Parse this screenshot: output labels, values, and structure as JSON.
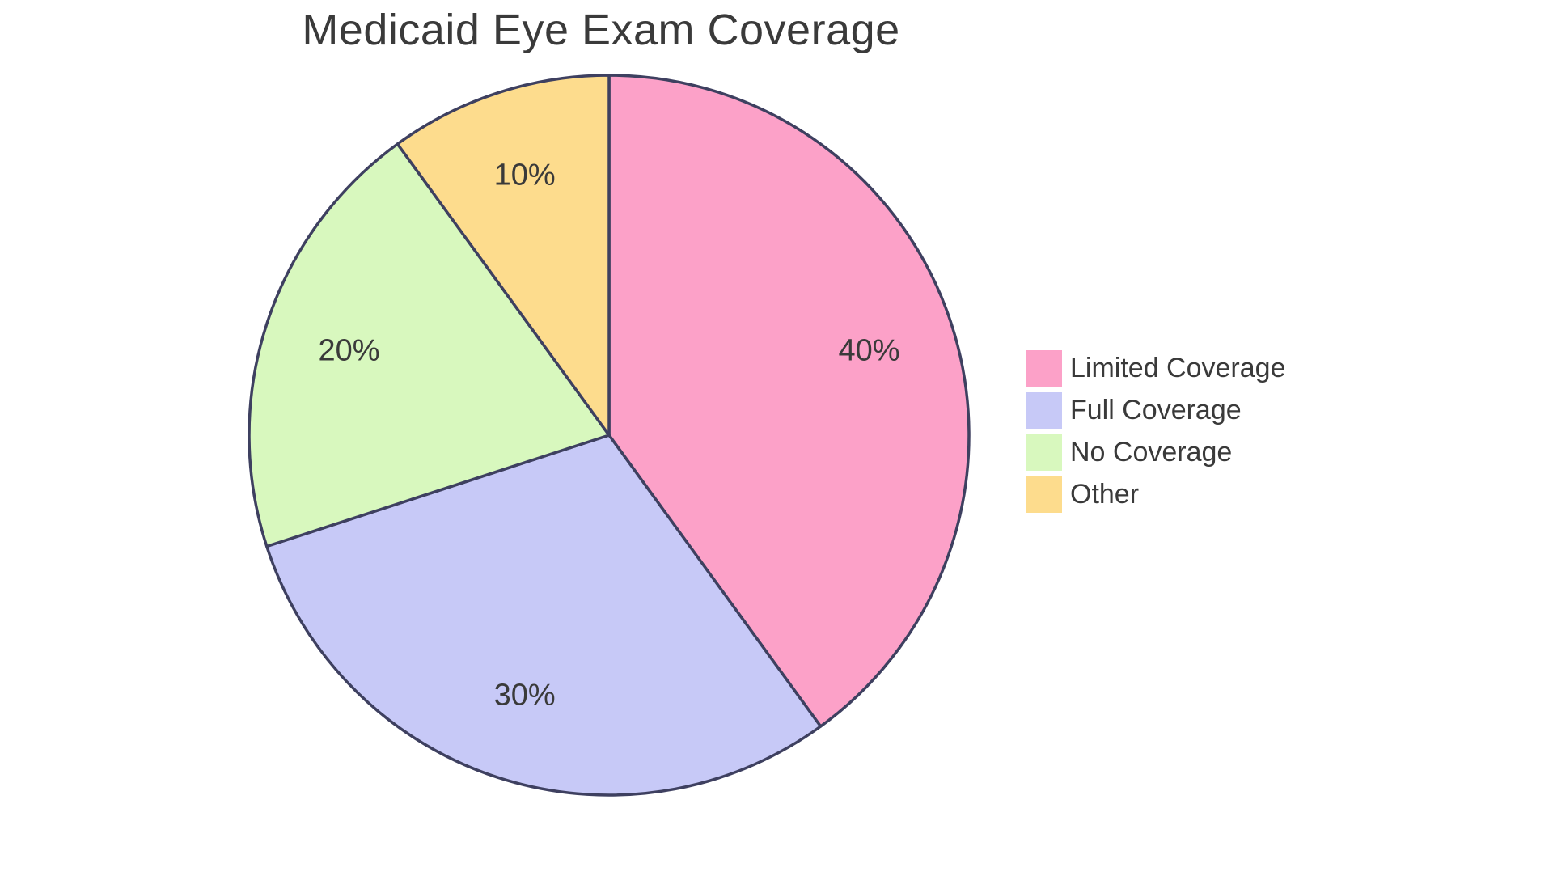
{
  "page": {
    "background_color": "#ffffff"
  },
  "chart_data": {
    "type": "pie",
    "title": "Medicaid Eye Exam Coverage",
    "labels": [
      "Limited Coverage",
      "Full Coverage",
      "No Coverage",
      "Other"
    ],
    "values": [
      40,
      30,
      20,
      10
    ],
    "value_labels": [
      "40%",
      "30%",
      "20%",
      "10%"
    ],
    "colors": [
      "#FCA1C8",
      "#C7C9F7",
      "#D8F8BE",
      "#FDDC8D"
    ],
    "slice_border_color": "#3E4060",
    "text_color": "#3A3A3A",
    "start_angle": "top",
    "direction": "clockwise",
    "legend_position": "right",
    "labels_position": "inside"
  }
}
